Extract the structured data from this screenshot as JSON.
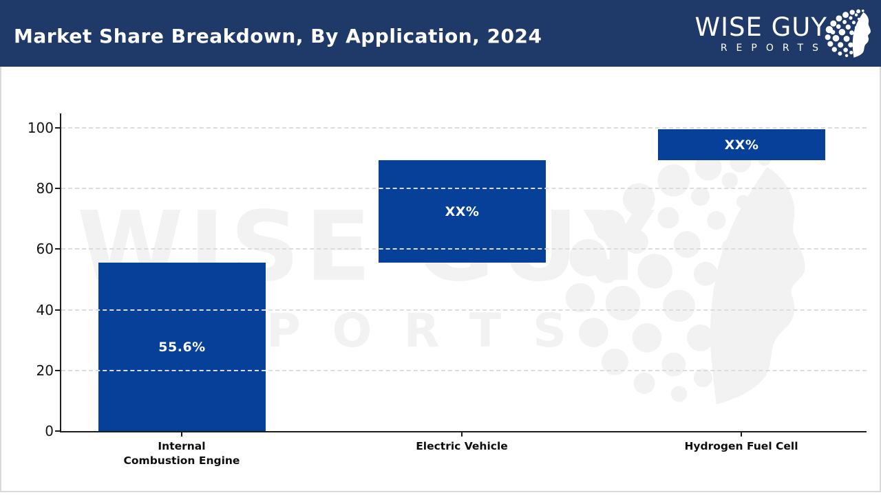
{
  "header": {
    "title": "Market Share Breakdown, By Application, 2024",
    "logo": {
      "brand": "WISE GUY",
      "sub": "REPORTS"
    }
  },
  "watermark": {
    "brand": "WISE GUY",
    "sub": "REPORTS"
  },
  "chart_data": {
    "type": "bar",
    "subtype": "waterfall (floating stacked segments)",
    "title": "Market Share Breakdown, By Application, 2024",
    "categories": [
      "Internal Combustion Engine",
      "Electric Vehicle",
      "Hydrogen Fuel Cell"
    ],
    "category_lines": [
      [
        "Internal",
        "Combustion Engine"
      ],
      [
        "Electric Vehicle"
      ],
      [
        "Hydrogen Fuel Cell"
      ]
    ],
    "segments": [
      {
        "category": "Internal Combustion Engine",
        "from": 0,
        "to": 55.6,
        "label": "55.6%"
      },
      {
        "category": "Electric Vehicle",
        "from": 55.6,
        "to": 89.3,
        "label": "XX%"
      },
      {
        "category": "Hydrogen Fuel Cell",
        "from": 89.3,
        "to": 99.5,
        "label": "XX%"
      }
    ],
    "xlabel": "",
    "ylabel": "",
    "yticks": [
      0,
      20,
      40,
      60,
      80,
      100
    ],
    "ylim": [
      0,
      105
    ],
    "grid": "horizontal-dashed",
    "legend": "none",
    "bar_color": "#074098",
    "value_label_color": "#ffffff"
  },
  "colors": {
    "header_bg": "#1f3a68",
    "axis": "#1c1c1c",
    "gridline": "#dcdcdc",
    "watermark": "#f2f2f2",
    "frame_border": "#d9d9d9"
  }
}
